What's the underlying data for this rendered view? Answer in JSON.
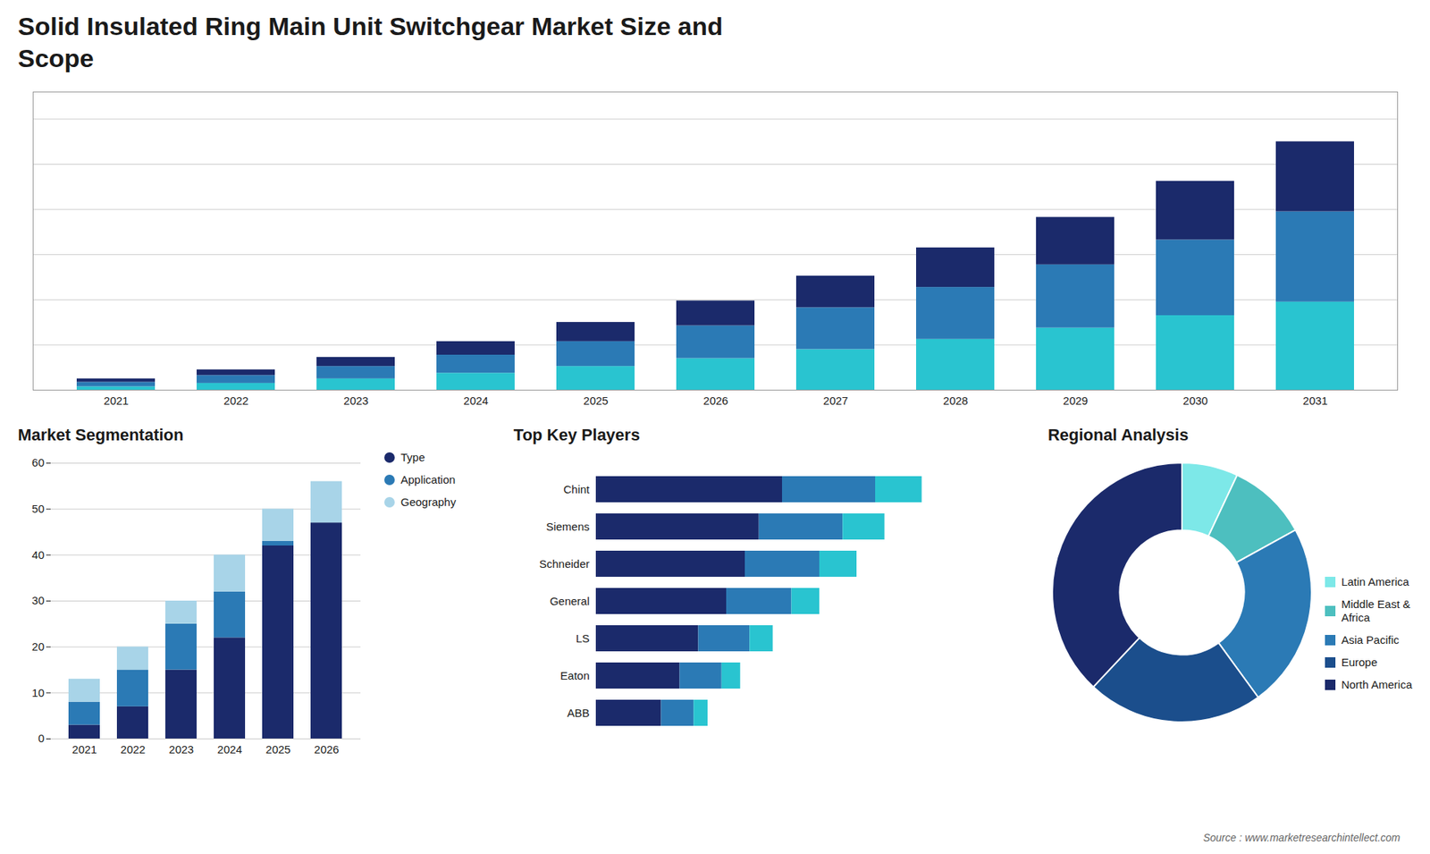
{
  "chart_data": [
    {
      "type": "bar",
      "title": "Solid Insulated Ring Main Unit Switchgear Market Size and\nScope",
      "categories": [
        "2021",
        "2022",
        "2023",
        "2024",
        "2025",
        "2026",
        "2027",
        "2028",
        "2029",
        "2030",
        "2031"
      ],
      "series": [
        {
          "color": "#29c4d0",
          "values": [
            1.5,
            3.0,
            5.0,
            7.5,
            10.5,
            14.0,
            18.0,
            22.5,
            27.5,
            33.0,
            39.0
          ]
        },
        {
          "color": "#2b7ab5",
          "values": [
            2.0,
            3.5,
            5.5,
            8.0,
            11.0,
            14.5,
            18.5,
            23.0,
            28.0,
            33.5,
            40.0
          ]
        },
        {
          "color": "#1b2a6b",
          "values": [
            1.5,
            2.5,
            4.0,
            6.0,
            8.5,
            11.0,
            14.0,
            17.5,
            21.0,
            26.0,
            31.0
          ]
        }
      ],
      "stacked": true,
      "ylim": [
        0,
        132
      ],
      "yticks": [
        0,
        20,
        40,
        60,
        80,
        100,
        120
      ],
      "grid": true,
      "tick_labels": "x"
    },
    {
      "type": "bar",
      "title": "Market Segmentation",
      "categories": [
        "2021",
        "2022",
        "2023",
        "2024",
        "2025",
        "2026"
      ],
      "series": [
        {
          "name": "Type",
          "color": "#1b2a6b",
          "values": [
            3,
            7,
            15,
            22,
            42,
            47
          ]
        },
        {
          "name": "Application",
          "color": "#2b7ab5",
          "values": [
            5,
            8,
            10,
            10,
            1,
            0
          ]
        },
        {
          "name": "Geography",
          "color": "#a8d4e8",
          "values": [
            5,
            5,
            5,
            8,
            7,
            9
          ]
        }
      ],
      "stacked": true,
      "ylim": [
        0,
        60
      ],
      "yticks": [
        0,
        10,
        20,
        30,
        40,
        50,
        60
      ],
      "grid": true,
      "legend": "right"
    },
    {
      "type": "bar",
      "title": "Top Key Players",
      "orientation": "horizontal",
      "categories": [
        "Chint",
        "Siemens",
        "Schneider",
        "General",
        "LS",
        "Eaton",
        "ABB"
      ],
      "series": [
        {
          "color": "#1b2a6b",
          "values": [
            40,
            35,
            32,
            28,
            22,
            18,
            14
          ]
        },
        {
          "color": "#2b7ab5",
          "values": [
            20,
            18,
            16,
            14,
            11,
            9,
            7
          ]
        },
        {
          "color": "#29c4d0",
          "values": [
            10,
            9,
            8,
            6,
            5,
            4,
            3
          ]
        }
      ],
      "stacked": true,
      "xlim": [
        0,
        80
      ],
      "tick_labels": "y"
    },
    {
      "type": "pie",
      "title": "Regional Analysis",
      "categories": [
        "Latin America",
        "Middle East &\nAfrica",
        "Asia Pacific",
        "Europe",
        "North America"
      ],
      "values": [
        7,
        10,
        23,
        22,
        38
      ],
      "colors": [
        "#7de8e8",
        "#4dbfbf",
        "#2b7ab5",
        "#1b4e8c",
        "#1b2a6b"
      ],
      "legend": "right",
      "annotations": [
        "Source : www.marketresearchintellect.com"
      ]
    }
  ]
}
